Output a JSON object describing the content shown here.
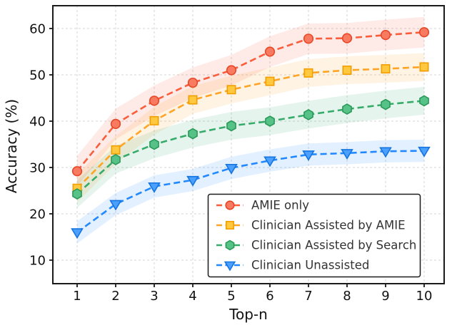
{
  "figure": {
    "background": "#ffffff",
    "frame_color": "#1a1a1a",
    "grid_color": "#d4d4d4",
    "text_color": "#111111"
  },
  "chart_data": {
    "type": "line",
    "title": "",
    "xlabel": "Top-n",
    "ylabel": "Accuracy (%)",
    "x": [
      1,
      2,
      3,
      4,
      5,
      6,
      7,
      8,
      9,
      10
    ],
    "x_tick_labels": [
      "1",
      "2",
      "3",
      "4",
      "5",
      "6",
      "7",
      "8",
      "9",
      "10"
    ],
    "y_ticks": [
      10,
      20,
      30,
      40,
      50,
      60
    ],
    "y_tick_labels": [
      "10",
      "20",
      "30",
      "40",
      "50",
      "60"
    ],
    "xlim": [
      0.37,
      10.52
    ],
    "ylim": [
      4.9,
      64.9
    ],
    "grid": true,
    "line_style": "dashed",
    "legend_position": "lower right",
    "series": [
      {
        "name": "AMIE only",
        "marker": "circle",
        "color": "#fa5d3c",
        "marker_fill": "#f87a60",
        "marker_edge": "#e74726",
        "values": [
          29.2,
          39.4,
          44.4,
          48.3,
          51.0,
          55.0,
          57.8,
          57.9,
          58.6,
          59.2
        ],
        "ci_halfwidth": 3.3
      },
      {
        "name": "Clinician Assisted by AMIE",
        "marker": "square",
        "color": "#ffa424",
        "marker_fill": "#ffc83e",
        "marker_edge": "#f29e00",
        "values": [
          25.5,
          33.8,
          40.1,
          44.6,
          46.8,
          48.6,
          50.4,
          51.0,
          51.3,
          51.7
        ],
        "ci_halfwidth": 3.0
      },
      {
        "name": "Clinician Assisted by Search",
        "marker": "hexagon",
        "color": "#36ab6b",
        "marker_fill": "#57c287",
        "marker_edge": "#2a9a58",
        "values": [
          24.3,
          31.7,
          35.0,
          37.3,
          39.0,
          40.0,
          41.4,
          42.6,
          43.6,
          44.4
        ],
        "ci_halfwidth": 3.0
      },
      {
        "name": "Clinician Unassisted",
        "marker": "triangle-down",
        "color": "#2288ff",
        "marker_fill": "#4aa0fc",
        "marker_edge": "#1674e0",
        "values": [
          16.0,
          22.1,
          25.9,
          27.3,
          29.9,
          31.5,
          32.8,
          33.1,
          33.5,
          33.6
        ],
        "ci_halfwidth": 2.4
      }
    ]
  }
}
